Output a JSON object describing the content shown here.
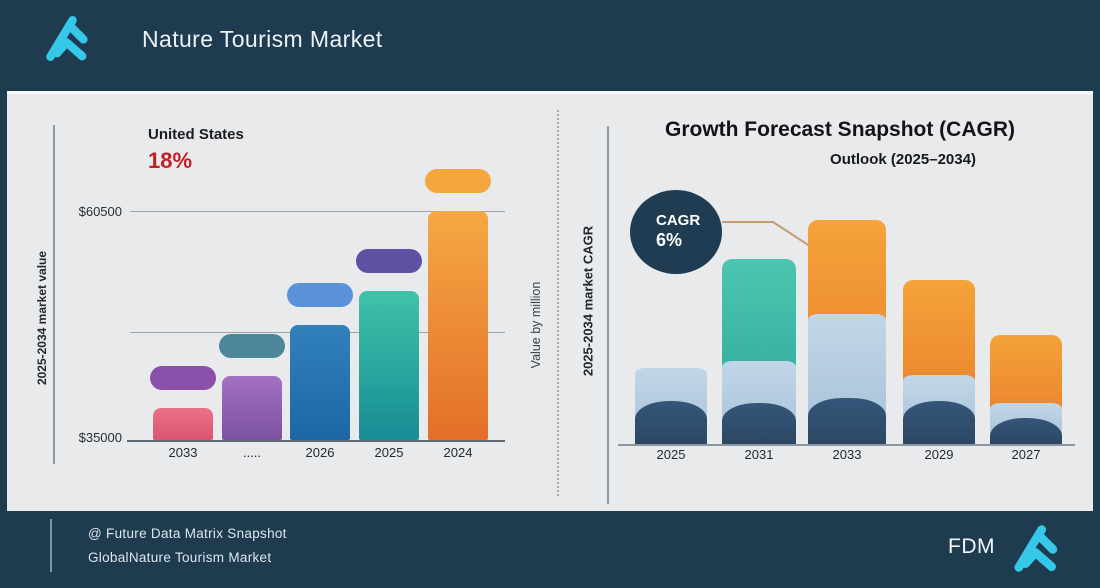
{
  "header": {
    "title": "Nature Tourism Market"
  },
  "footer": {
    "attribution": "@ Future Data Matrix Snapshot",
    "subject": "GlobalNature Tourism Market",
    "brand": "FDM"
  },
  "colors": {
    "header_bg": "#1e3b50",
    "panel_bg": "#e9eaec",
    "accent_cyan": "#35c8e8",
    "highlight_red": "#c21f26",
    "badge_navy": "#1f3c52",
    "connector": "#c79b72"
  },
  "chart_data": [
    {
      "type": "bar",
      "title": "United States",
      "highlight": "18%",
      "ylabel_left": "2025-2034 market value",
      "ylabel_right": "Value by million",
      "categories": [
        "2033",
        ".....",
        "2026",
        "2025",
        "2024"
      ],
      "values": [
        38600,
        42100,
        47800,
        51600,
        60500
      ],
      "ylim": [
        35000,
        60500
      ],
      "ytick_labels": [
        "$35000",
        "$60500"
      ],
      "grid": true,
      "legend_position": "none",
      "bar_gradients": [
        [
          "#ea7287",
          "#dc5470"
        ],
        [
          "#a471c2",
          "#7b51a1"
        ],
        [
          "#3181bb",
          "#1d66a4"
        ],
        [
          "#40c2a8",
          "#178d95"
        ],
        [
          "#f5a843",
          "#e36f28"
        ]
      ],
      "cap_colors": [
        "#8b50a9",
        "#4b8799",
        "#5a91d9",
        "#5e51a3",
        "#f5a73e"
      ]
    },
    {
      "type": "stacked-bar",
      "title": "Growth Forecast Snapshot (CAGR)",
      "subtitle": "Outlook (2025–2034)",
      "badge_label": "CAGR",
      "badge_value": "6%",
      "ylabel": "2025-2034 market CAGR",
      "categories": [
        "2025",
        "2031",
        "2033",
        "2029",
        "2027"
      ],
      "values": [
        20500,
        50000,
        60500,
        44300,
        29400
      ],
      "annotated_bar": {
        "category": "2033",
        "label": "60500"
      },
      "ylim": [
        0,
        60500
      ],
      "grid": false,
      "segment_colors": {
        "navy": [
          "#35567a",
          "#2b4763"
        ],
        "lightblue": [
          "#c2d6e8",
          "#a6c1d8"
        ],
        "teal": [
          "#4cc6b0",
          "#2da295"
        ],
        "orange": [
          "#f4a339",
          "#e8792a"
        ]
      },
      "bars": [
        {
          "category": "2025",
          "segments": [
            {
              "color": "navy",
              "to": 11600
            },
            {
              "color": "lightblue",
              "to": 20500
            }
          ]
        },
        {
          "category": "2031",
          "segments": [
            {
              "color": "navy",
              "to": 11000
            },
            {
              "color": "lightblue",
              "to": 22400
            },
            {
              "color": "teal",
              "to": 50000
            }
          ]
        },
        {
          "category": "2033",
          "segments": [
            {
              "color": "navy",
              "to": 12400
            },
            {
              "color": "lightblue",
              "to": 35100
            },
            {
              "color": "orange",
              "to": 60500
            }
          ]
        },
        {
          "category": "2029",
          "segments": [
            {
              "color": "navy",
              "to": 11600
            },
            {
              "color": "lightblue",
              "to": 18600
            },
            {
              "color": "orange",
              "to": 44300
            }
          ]
        },
        {
          "category": "2027",
          "segments": [
            {
              "color": "navy",
              "to": 7000
            },
            {
              "color": "lightblue",
              "to": 11000
            },
            {
              "color": "orange",
              "to": 29400
            }
          ]
        }
      ]
    }
  ]
}
